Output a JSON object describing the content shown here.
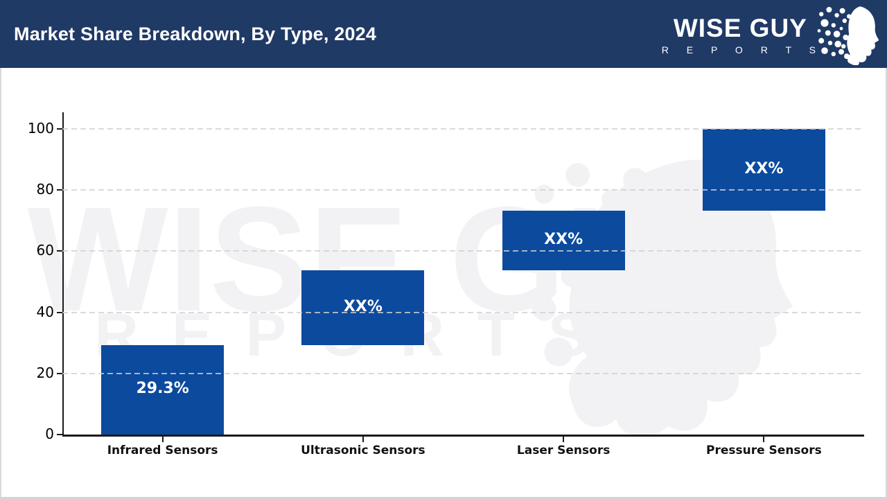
{
  "header": {
    "title": "Market Share Breakdown, By Type, 2024",
    "bg_color": "#203A66",
    "logo": {
      "line1": "WISE GUY",
      "line2": "R E P O R T S"
    }
  },
  "watermark": {
    "line1": "WISE GUY",
    "line2": "R E P O R T S",
    "color": "#F2F2F4"
  },
  "chart_data": {
    "type": "bar",
    "subtype": "floating-segment (waterfall-style) bars",
    "title": "Market Share Breakdown, By Type, 2024",
    "categories": [
      "Infrared Sensors",
      "Ultrasonic Sensors",
      "Laser Sensors",
      "Pressure Sensors"
    ],
    "series": [
      {
        "name": "Market share (%)",
        "segments": [
          {
            "start": 0,
            "end": 29.3,
            "label": "29.3%"
          },
          {
            "start": 29.3,
            "end": 53.7,
            "label": "XX%"
          },
          {
            "start": 53.7,
            "end": 73.2,
            "label": "XX%"
          },
          {
            "start": 73.2,
            "end": 100,
            "label": "XX%"
          }
        ]
      }
    ],
    "xlabel": "",
    "ylabel": "",
    "ylim": [
      0,
      105
    ],
    "yticks": [
      0,
      20,
      40,
      60,
      80,
      100
    ],
    "grid": true,
    "grid_style": "dashed",
    "legend": "none",
    "bar_color": "#0C4A9E",
    "bar_label_color": "#ffffff",
    "axis_color": "#1a1a1a",
    "grid_color": "#d0d0d0"
  }
}
